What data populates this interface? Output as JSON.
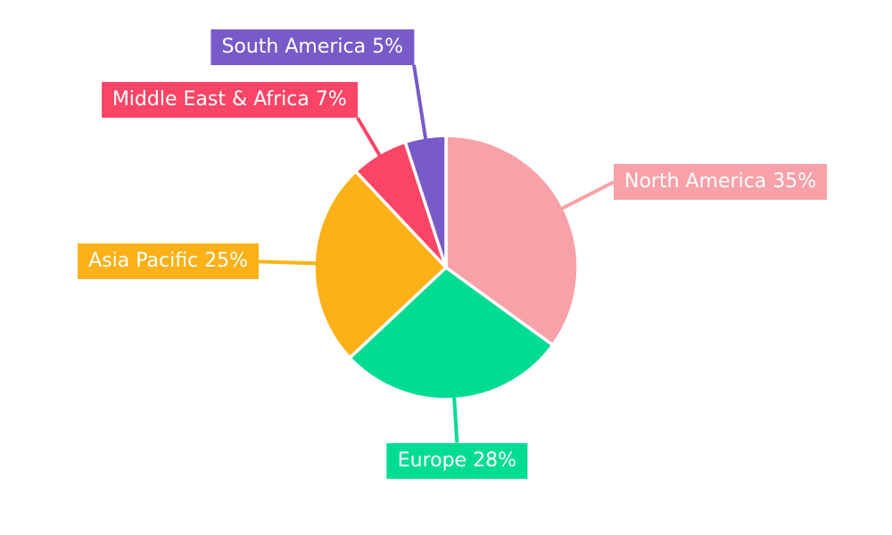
{
  "chart_data": {
    "type": "pie",
    "categories": [
      "North America",
      "Europe",
      "Asia Pacific",
      "Middle East & Africa",
      "South America"
    ],
    "values": [
      35,
      28,
      25,
      7,
      5
    ],
    "unit": "%",
    "slices": [
      {
        "label": "North America",
        "value": 35,
        "display": "North America 35%",
        "color": "#F8A1A8"
      },
      {
        "label": "Europe",
        "value": 28,
        "display": "Europe 28%",
        "color": "#00DC93"
      },
      {
        "label": "Asia Pacific",
        "value": 25,
        "display": "Asia Pacific 25%",
        "color": "#FBB117"
      },
      {
        "label": "Middle East & Africa",
        "value": 7,
        "display": "Middle East & Africa 7%",
        "color": "#FB4566"
      },
      {
        "label": "South America",
        "value": 5,
        "display": "South America 5%",
        "color": "#785AC8"
      }
    ],
    "start_angle_deg": 0,
    "direction": "clockwise",
    "slice_border_color": "#FFFFFF",
    "background_color": "#FFFFFF",
    "legend_position": "none",
    "label_style": "outside-boxes-with-leader-lines"
  }
}
